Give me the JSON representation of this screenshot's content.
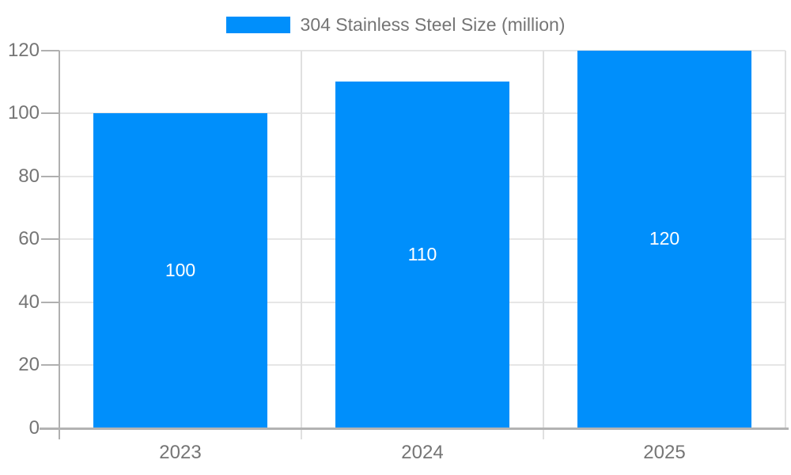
{
  "legend": {
    "label": "304 Stainless Steel Size (million)",
    "swatch_color": "#008FFB"
  },
  "chart_data": {
    "type": "bar",
    "title": "304 Stainless Steel Size (million)",
    "categories": [
      "2023",
      "2024",
      "2025"
    ],
    "series": [
      {
        "name": "304 Stainless Steel Size (million)",
        "values": [
          100,
          110,
          120
        ]
      }
    ],
    "data_labels": [
      "100",
      "110",
      "120"
    ],
    "xlabel": "",
    "ylabel": "",
    "ylim": [
      0,
      120
    ],
    "yticks": [
      0,
      20,
      40,
      60,
      80,
      100,
      120
    ],
    "grid": true,
    "legend_position": "top"
  },
  "colors": {
    "bar": "#008FFB",
    "axis_line": "#b0b0b0",
    "bottom_axis_line": "#b3b3b3",
    "gridline": "#e6e6e6",
    "separator": "#e0e0e0",
    "tick_label": "#757575",
    "data_label": "#ffffff",
    "background": "#ffffff"
  }
}
